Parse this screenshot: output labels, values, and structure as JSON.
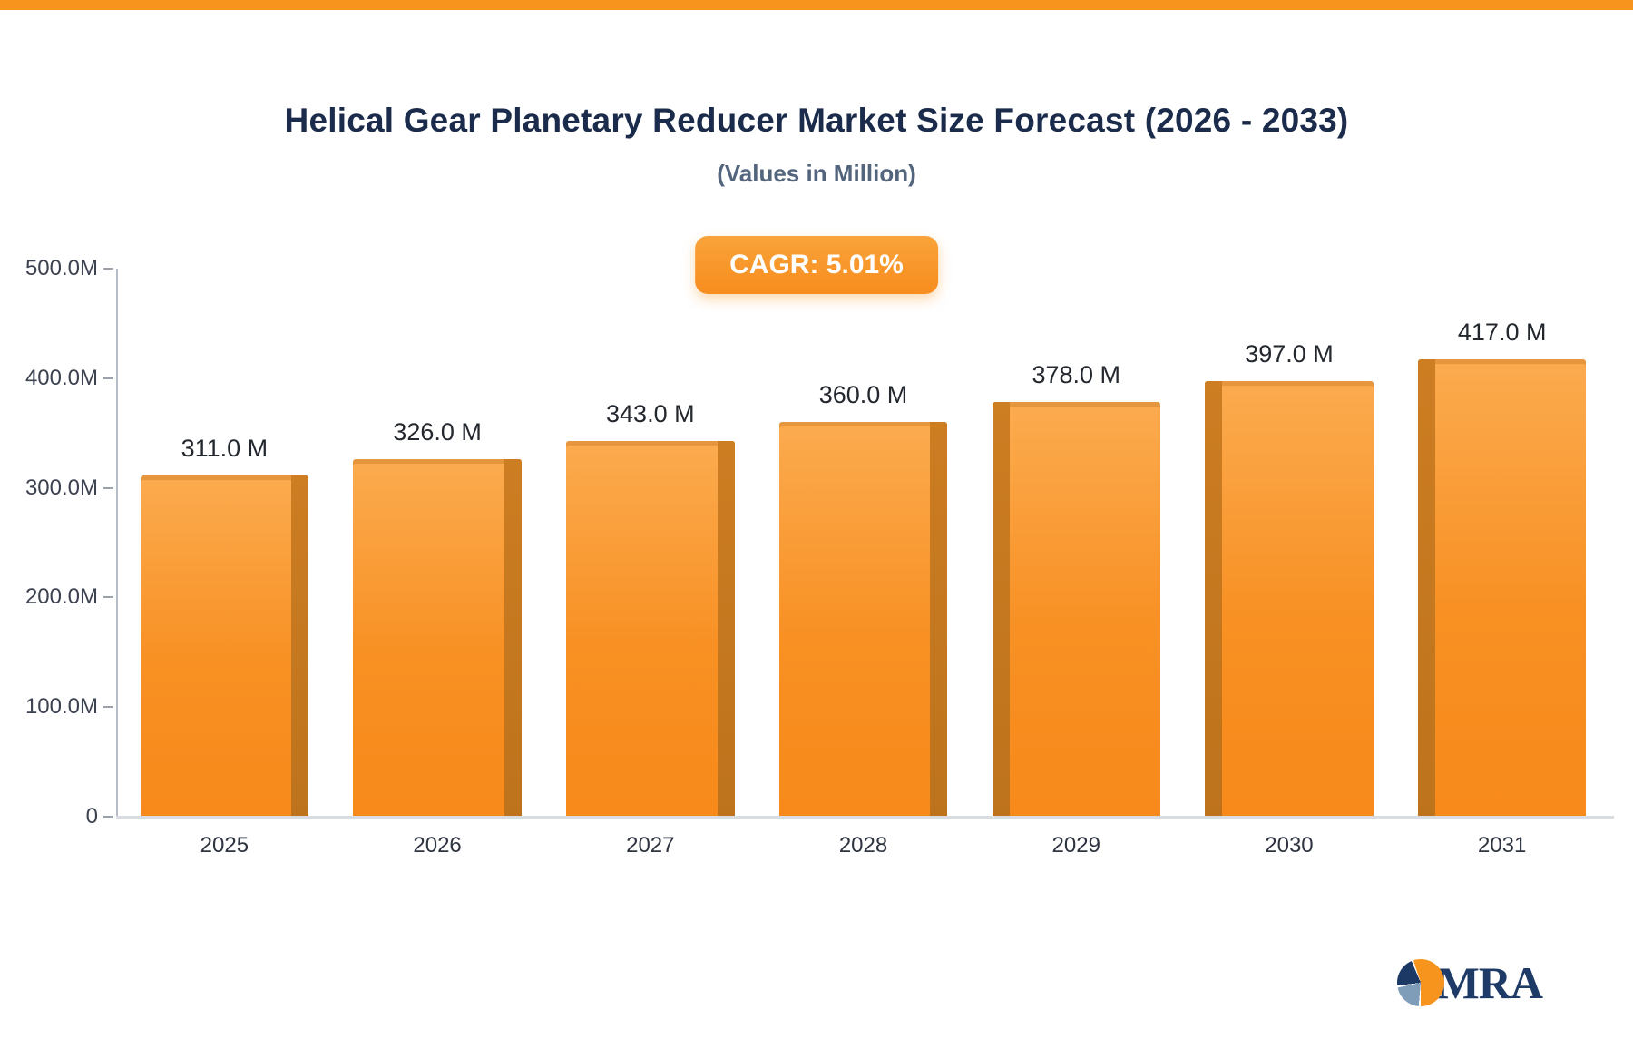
{
  "page": {
    "top_bar_color": "#f7941e",
    "title": "Helical Gear Planetary Reducer Market Size Forecast (2026 - 2033)",
    "subtitle": "(Values in Million)",
    "cagr_badge": "CAGR: 5.01%",
    "logo_text": "MRA"
  },
  "chart_data": {
    "type": "bar",
    "title": "Helical Gear Planetary Reducer Market Size Forecast (2026 - 2033)",
    "subtitle": "(Values in Million)",
    "annotation": "CAGR: 5.01%",
    "categories": [
      "2025",
      "2026",
      "2027",
      "2028",
      "2029",
      "2030",
      "2031"
    ],
    "values": [
      311,
      326,
      343,
      360,
      378,
      397,
      417
    ],
    "value_labels": [
      "311.0 M",
      "326.0 M",
      "343.0 M",
      "360.0 M",
      "378.0 M",
      "397.0 M",
      "417.0 M"
    ],
    "xlabel": "",
    "ylabel": "",
    "ylim": [
      0,
      500
    ],
    "yticks": [
      {
        "label": "500.0M",
        "value": 500
      },
      {
        "label": "400.0M",
        "value": 400
      },
      {
        "label": "300.0M",
        "value": 300
      },
      {
        "label": "200.0M",
        "value": 200
      },
      {
        "label": "100.0M",
        "value": 100
      },
      {
        "label": "0",
        "value": 0
      }
    ],
    "grid": false,
    "legend_position": "none",
    "bar_color_top": "#fbab4f",
    "bar_color_bottom": "#f78a1a",
    "bar_shade_color": "#c97a1e",
    "accent_color": "#f7941e"
  }
}
